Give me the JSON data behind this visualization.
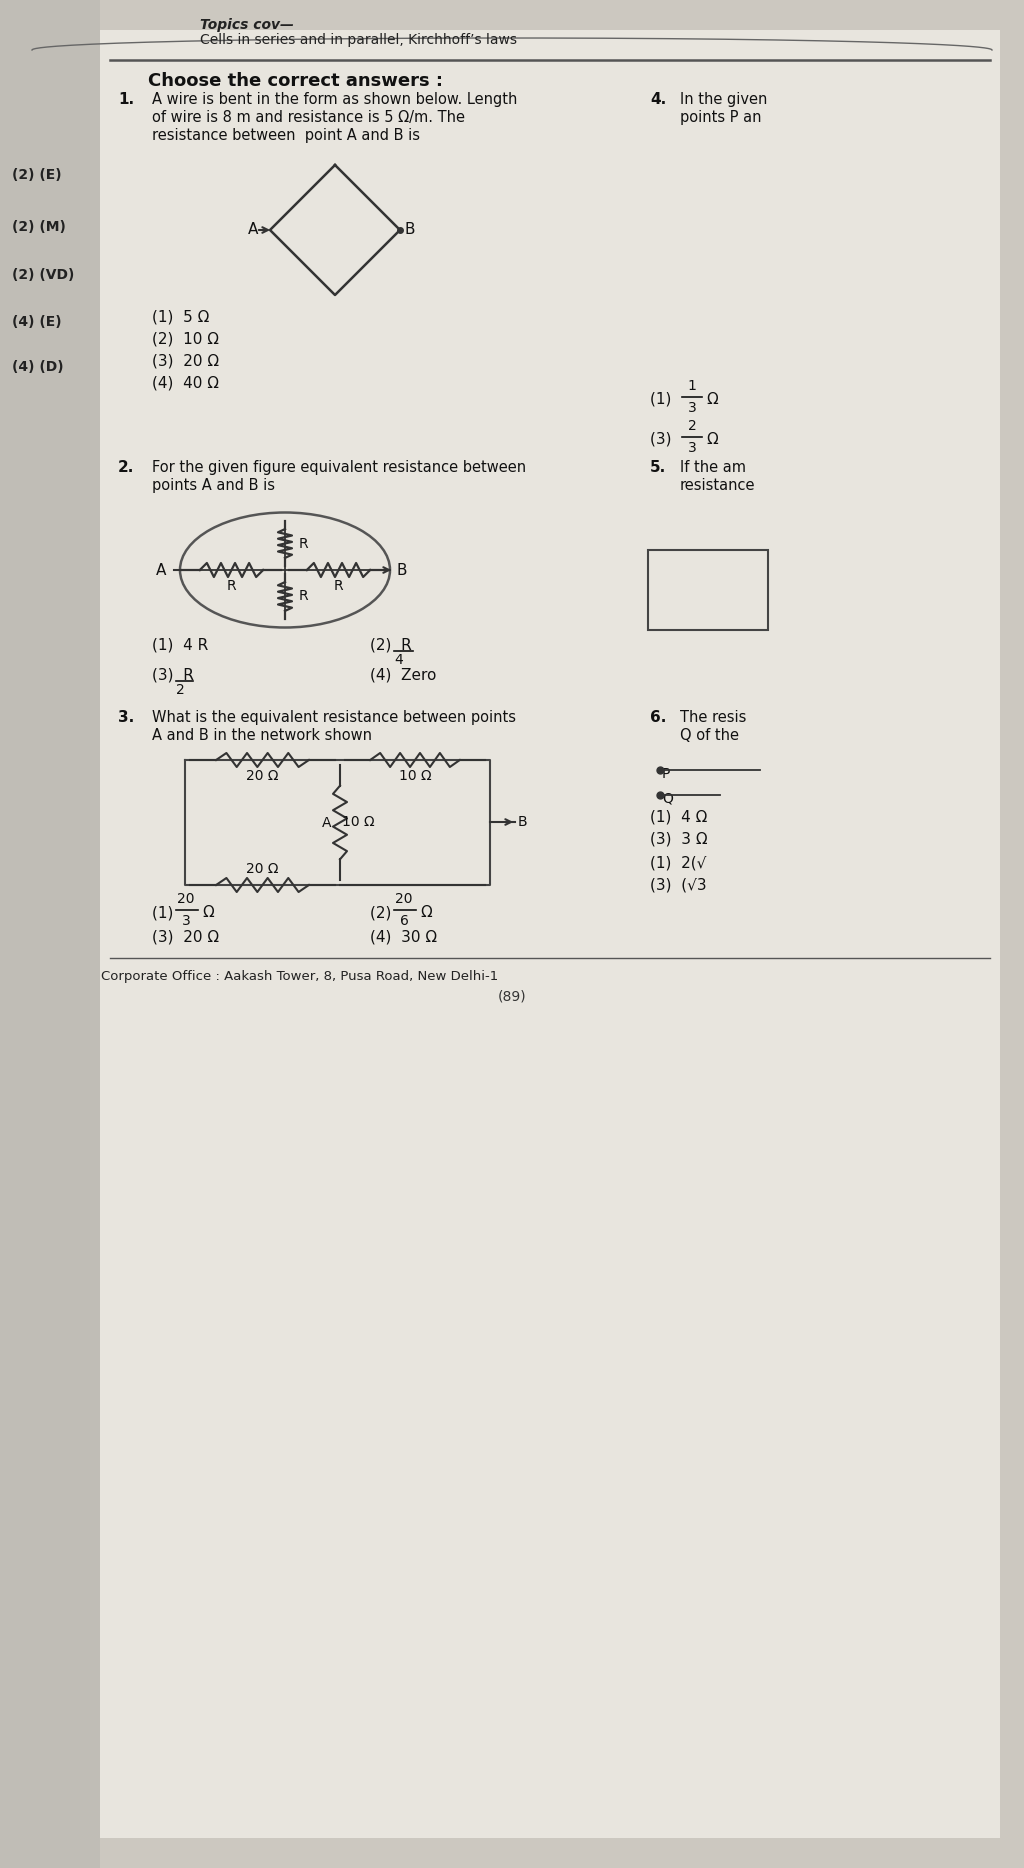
{
  "bg_color": "#ccc8c0",
  "page_bg": "#e8e5de",
  "left_margin_bg": "#c0bdb6",
  "header_line1": "Topics cov—",
  "header_line2": "Cells in series and in parallel, Kirchhoff’s laws",
  "section_title": "Choose the correct answers :",
  "left_answers": [
    "(2) (E)",
    "(2) (M)",
    "(2) (VD)",
    "(4) (E)",
    "(4) (D)"
  ],
  "q1_num": "1.",
  "q1_line1": "A wire is bent in the form as shown below. Length",
  "q1_line2": "of wire is 8 m and resistance is 5 Ω/m. The",
  "q1_line3": "resistance between  point A and B is",
  "q1_opts": [
    "(1)  5 Ω",
    "(2)  10 Ω",
    "(3)  20 Ω",
    "(4)  40 Ω"
  ],
  "q2_num": "2.",
  "q2_line1": "For the given figure equivalent resistance between",
  "q2_line2": "points A and B is",
  "q2_opt1": "(1)  4 R",
  "q2_opt2": "(2)  R",
  "q2_opt2_denom": "4",
  "q2_opt3": "(3)  R",
  "q2_opt3_denom": "2",
  "q2_opt4": "(4)  Zero",
  "q3_num": "3.",
  "q3_line1": "What is the equivalent resistance between points",
  "q3_line2": "A and B in the network shown",
  "q3_opt1": "(1)  ",
  "q3_opt1_num": "20",
  "q3_opt1_denom": "3",
  "q3_opt1_unit": "Ω",
  "q3_opt2": "(2)  ",
  "q3_opt2_num": "20",
  "q3_opt2_denom": "6",
  "q3_opt2_unit": "Ω",
  "q3_opt3": "(3)  20 Ω",
  "q3_opt4": "(4)  30 Ω",
  "q4_num": "4.",
  "q4_line1": "In the given",
  "q4_line2": "points P an",
  "q4_opt1_num": "1",
  "q4_opt1_denom": "3",
  "q4_opt3_num": "2",
  "q4_opt3_denom": "3",
  "q5_num": "5.",
  "q5_line1": "If the am",
  "q5_line2": "resistance",
  "q6_num": "6.",
  "q6_line1": "The resis",
  "q6_line2": "Q of the",
  "q6_opt1": "(1)  4 Ω",
  "q6_opt2": "(3)  3 Ω",
  "q6_opt3": "(1)  2(√",
  "q6_opt4": "(3)  (√3",
  "footer": "Corporate Office : Aakash Tower, 8, Pusa Road, New Delhi-1",
  "page_num": "(89)"
}
